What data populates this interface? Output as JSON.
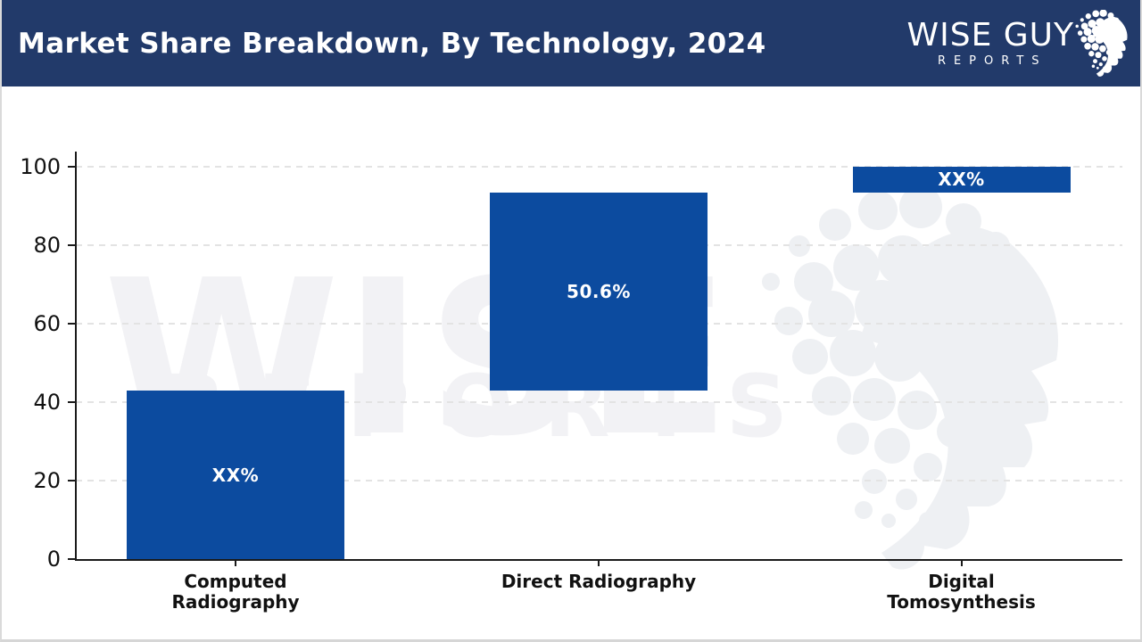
{
  "header": {
    "title": "Market Share Breakdown, By Technology, 2024",
    "brand": {
      "name": "WISE GUY",
      "sub": "REPORTS"
    }
  },
  "watermark": {
    "word1": "WISE",
    "word2": "REPORTS"
  },
  "colors": {
    "header_bg": "#223a6a",
    "bar": "#0c4b9f",
    "axis": "#1a1a1a",
    "grid": "#e3e3e3",
    "watermark": "#f2f2f5"
  },
  "chart_data": {
    "type": "bar",
    "subtype": "waterfall",
    "title": "Market Share Breakdown, By Technology, 2024",
    "categories": [
      "Computed\nRadiography",
      "Direct Radiography",
      "Digital\nTomosynthesis"
    ],
    "bars": [
      {
        "category": "Computed\nRadiography",
        "label": "XX%",
        "start": 0,
        "end": 42.8
      },
      {
        "category": "Direct Radiography",
        "label": "50.6%",
        "start": 42.8,
        "end": 93.4
      },
      {
        "category": "Digital\nTomosynthesis",
        "label": "XX%",
        "start": 93.4,
        "end": 100
      }
    ],
    "ylim": [
      0,
      100
    ],
    "yticks": [
      0,
      20,
      40,
      60,
      80,
      100
    ],
    "grid": "horizontal-dashed",
    "legend": "none",
    "bar_color": "#0c4b9f",
    "value_labels": "inside-center, white bold"
  }
}
